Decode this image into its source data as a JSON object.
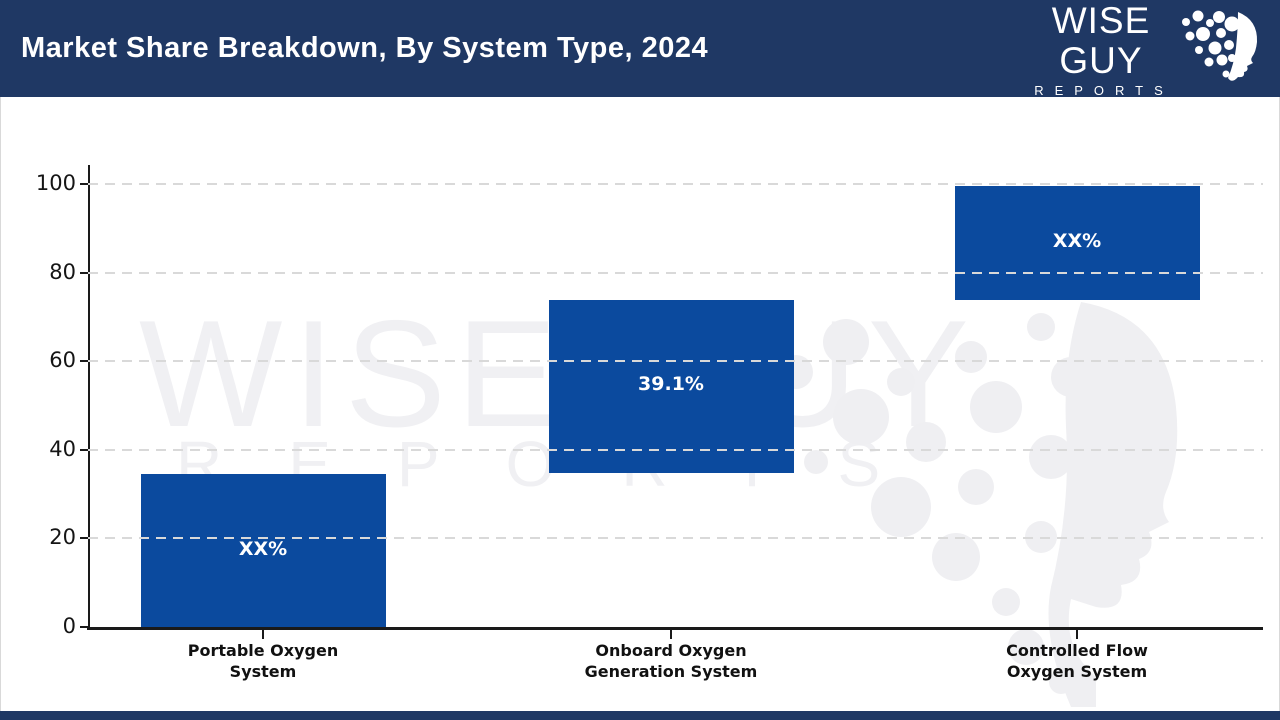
{
  "header": {
    "title": "Market Share Breakdown, By System Type, 2024",
    "logo": {
      "name_top": "WISE GUY",
      "name_bottom": "REPORTS"
    }
  },
  "watermark": {
    "line1": "WISE GUY",
    "line2": "REPORTS"
  },
  "colors": {
    "header_bg": "#1F3864",
    "footer_bg": "#1F3864",
    "bar_fill": "#0B4A9E",
    "bar_label_text": "#FFFFFF",
    "grid_line": "#D9D9D9",
    "axis_line": "#1A1A1A",
    "tick_text": "#151515",
    "watermark": "#F0F0F3"
  },
  "chart_data": {
    "type": "bar",
    "subtype": "floating_segment_waterfall",
    "title": "Market Share Breakdown, By System Type, 2024",
    "categories": [
      "Portable Oxygen System",
      "Onboard Oxygen Generation System",
      "Controlled Flow Oxygen System"
    ],
    "category_label_lines": [
      [
        "Portable Oxygen",
        "System"
      ],
      [
        "Onboard Oxygen",
        "Generation System"
      ],
      [
        "Controlled Flow",
        "Oxygen System"
      ]
    ],
    "segments": [
      {
        "category": "Portable Oxygen System",
        "start": 0,
        "end": 34.5,
        "label": "XX%"
      },
      {
        "category": "Onboard Oxygen Generation System",
        "start": 34.8,
        "end": 73.9,
        "label": "39.1%"
      },
      {
        "category": "Controlled Flow Oxygen System",
        "start": 73.9,
        "end": 99.5,
        "label": "XX%"
      }
    ],
    "xlabel": "",
    "ylabel": "",
    "ylim": [
      0,
      100
    ],
    "yticks": [
      0,
      20,
      40,
      60,
      80,
      100
    ],
    "grid": "horizontal dashed",
    "legend": "none"
  }
}
